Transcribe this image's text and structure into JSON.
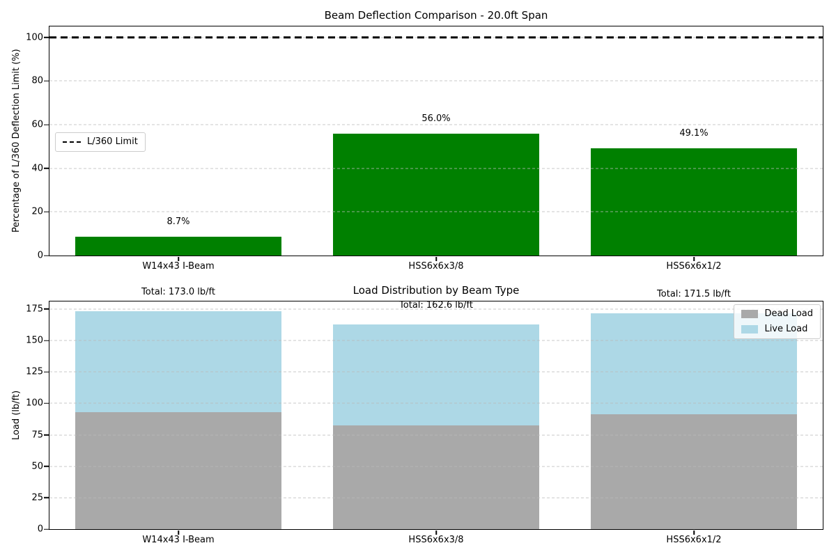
{
  "figure": {
    "background": "#ffffff"
  },
  "chart_data": [
    {
      "type": "bar",
      "title": "Beam Deflection Comparison - 20.0ft Span",
      "ylabel": "Percentage of L/360 Deflection Limit (%)",
      "xlabel": "",
      "categories": [
        "W14x43 I-Beam",
        "HSS6x6x3/8",
        "HSS6x6x1/2"
      ],
      "values": [
        8.7,
        56.0,
        49.1
      ],
      "bar_labels": [
        "8.7%",
        "56.0%",
        "49.1%"
      ],
      "bar_color": "#008000",
      "ylim": [
        0,
        105
      ],
      "yticks": [
        0,
        20,
        40,
        60,
        80,
        100
      ],
      "grid": "horizontal-dashed",
      "reference_line": {
        "value": 100,
        "label": "L/360 Limit",
        "color": "#000000",
        "style": "dashed"
      },
      "legend": {
        "position": "center-left",
        "entries": [
          {
            "label": "L/360 Limit",
            "marker": "dashed-line",
            "color": "#000000"
          }
        ]
      }
    },
    {
      "type": "bar",
      "stacked": true,
      "title": "Load Distribution by Beam Type",
      "ylabel": "Load (lb/ft)",
      "xlabel": "",
      "categories": [
        "W14x43 I-Beam",
        "HSS6x6x3/8",
        "HSS6x6x1/2"
      ],
      "series": [
        {
          "name": "Dead Load",
          "color": "#a9a9a9",
          "values": [
            93.0,
            82.6,
            91.5
          ]
        },
        {
          "name": "Live Load",
          "color": "#add8e6",
          "values": [
            80.0,
            80.0,
            80.0
          ]
        }
      ],
      "totals": [
        173.0,
        162.6,
        171.5
      ],
      "total_labels": [
        "Total: 173.0 lb/ft",
        "Total: 162.6 lb/ft",
        "Total: 171.5 lb/ft"
      ],
      "ylim": [
        0,
        181
      ],
      "yticks": [
        0,
        25,
        50,
        75,
        100,
        125,
        150,
        175
      ],
      "grid": "horizontal-dashed",
      "legend": {
        "position": "upper-right",
        "entries": [
          {
            "label": "Dead Load",
            "marker": "rect",
            "color": "#a9a9a9"
          },
          {
            "label": "Live Load",
            "marker": "rect",
            "color": "#add8e6"
          }
        ]
      }
    }
  ]
}
